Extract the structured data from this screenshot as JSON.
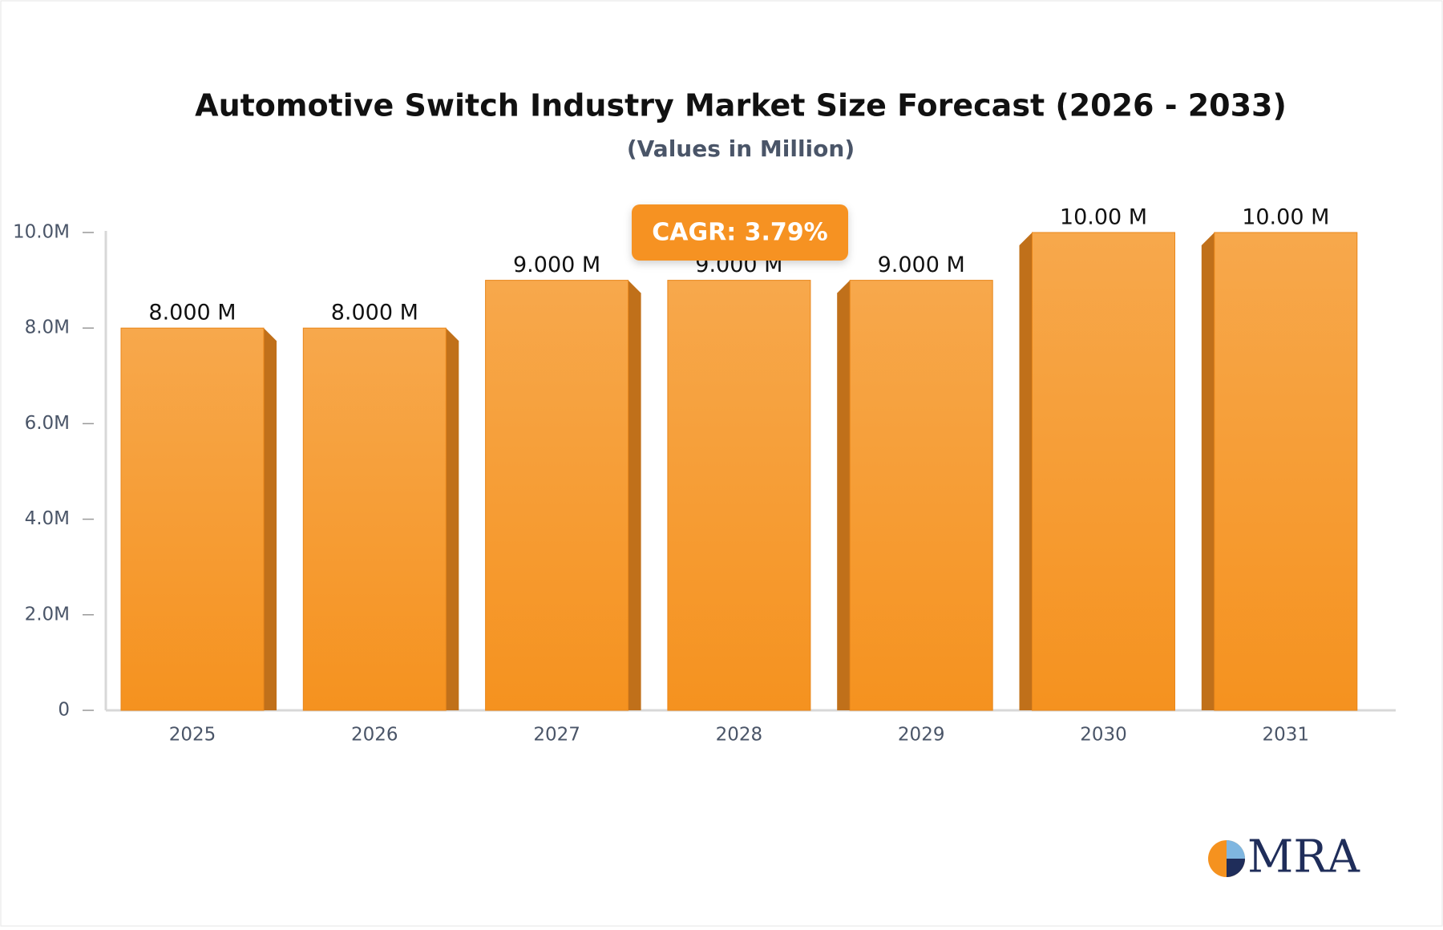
{
  "chart_data": {
    "type": "bar3d",
    "title": "Automotive Switch Industry Market Size Forecast (2026 - 2033)",
    "subtitle": "(Values in Million)",
    "annotation": "CAGR: 3.79%",
    "categories": [
      "2025",
      "2026",
      "2027",
      "2028",
      "2029",
      "2030",
      "2031"
    ],
    "values": [
      8,
      8,
      9,
      9,
      9,
      10,
      10
    ],
    "value_labels": [
      "8.000 M",
      "8.000 M",
      "9.000 M",
      "9.000 M",
      "9.000 M",
      "10.00 M",
      "10.00 M"
    ],
    "color": "#f69c30",
    "ylim": [
      0,
      10
    ],
    "yticks": [
      0,
      {
        "value": 2,
        "label": "2.0M"
      },
      {
        "value": 4,
        "label": "4.0M"
      },
      {
        "value": 6,
        "label": "6.0M"
      },
      {
        "value": 8,
        "label": "8.0M"
      },
      {
        "value": 10,
        "label": "10.0M"
      }
    ],
    "grid": false
  },
  "logo_text": "MRA"
}
